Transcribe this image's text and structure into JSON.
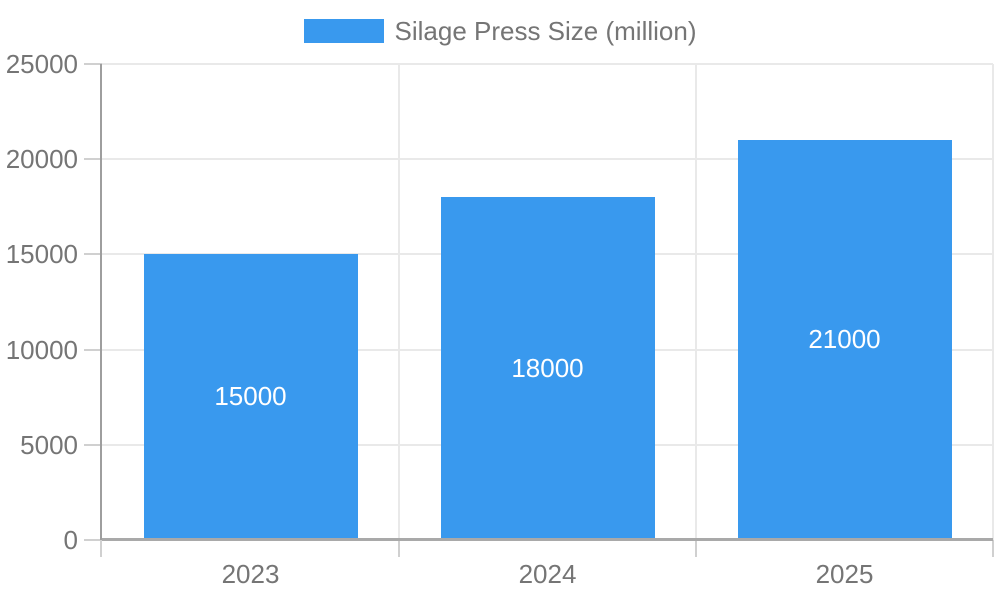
{
  "legend": {
    "label": "Silage Press Size (million)"
  },
  "chart_data": {
    "type": "bar",
    "title": "",
    "xlabel": "",
    "ylabel": "",
    "categories": [
      "2023",
      "2024",
      "2025"
    ],
    "series": [
      {
        "name": "Silage Press Size (million)",
        "values": [
          15000,
          18000,
          21000
        ]
      }
    ],
    "bar_value_labels": [
      "15000",
      "18000",
      "21000"
    ],
    "ylim": [
      0,
      25000
    ],
    "ytick_step": 5000,
    "ytick_labels": [
      "0",
      "5000",
      "10000",
      "15000",
      "20000",
      "25000"
    ],
    "grid": true,
    "legend_position": "top-center"
  },
  "colors": {
    "bar": "#3999EE",
    "bar_label_text": "#FFFFFF",
    "axis_text": "#757575",
    "legend_text": "#757575",
    "gridline": "#E9E9E9",
    "tick": "#D0D0D0",
    "y_axis_line": "#9E9E9E",
    "baseline": "#A9A9A9",
    "background": "#FFFFFF"
  }
}
